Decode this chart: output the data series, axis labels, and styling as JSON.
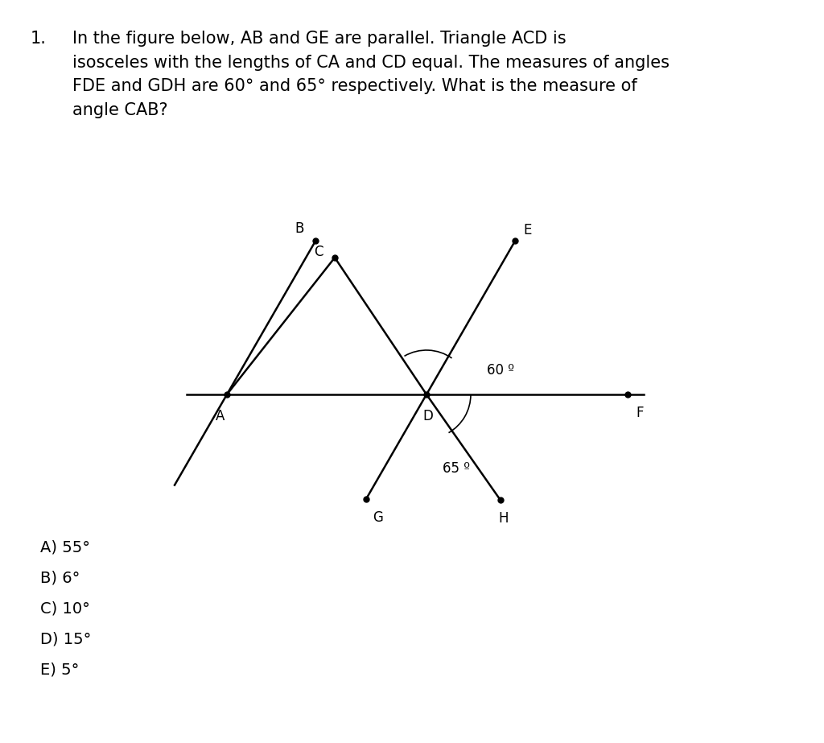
{
  "title_number": "1.",
  "title_text": "In the figure below, AB and GE are parallel. Triangle ACD is\nisosceles with the lengths of CA and CD equal. The measures of angles\nFDE and GDH are 60° and 65° respectively. What is the measure of\nangle CAB?",
  "choices": [
    "A) 55°",
    "B) 6°",
    "C) 10°",
    "D) 15°",
    "E) 5°"
  ],
  "bg_color": "#ffffff",
  "line_color": "#000000",
  "dot_color": "#000000",
  "angle_60_label": "60 º",
  "angle_65_label": "65 º",
  "font_size_title": 15,
  "font_size_labels": 12,
  "font_size_choices": 14,
  "line_width": 1.8,
  "dot_size": 5
}
